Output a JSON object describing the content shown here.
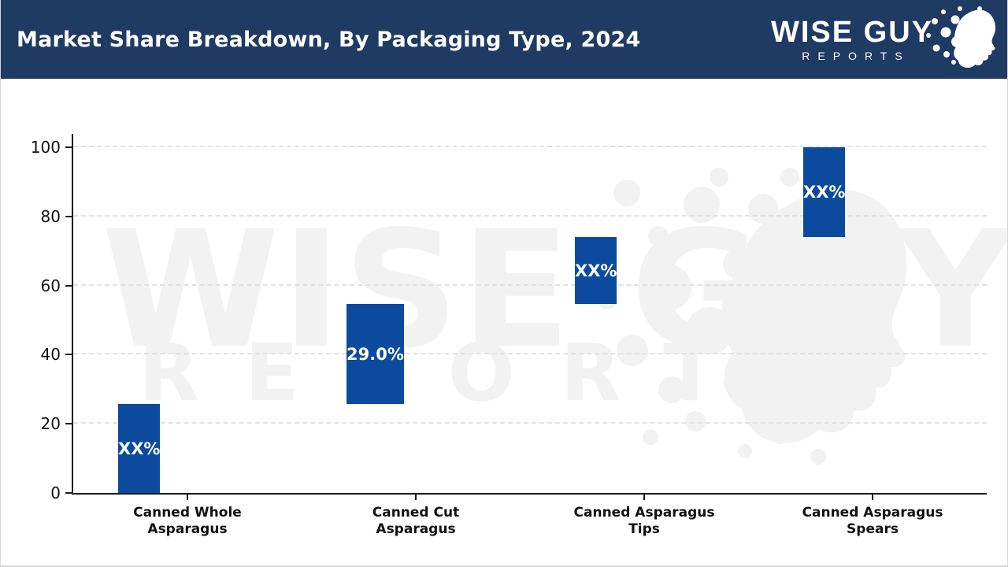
{
  "header": {
    "title": "Market Share Breakdown, By Packaging Type, 2024",
    "logo": {
      "line1": "WISE GUY",
      "line2": "REPORTS"
    }
  },
  "watermark": {
    "line1": "WISE GUY",
    "line2": "REPORTS"
  },
  "chart_data": {
    "type": "bar",
    "subtype": "waterfall-floating-bars",
    "title": "Market Share Breakdown, By Packaging Type, 2024",
    "categories": [
      "Canned Whole Asparagus",
      "Canned Cut Asparagus",
      "Canned Asparagus Tips",
      "Canned Asparagus Spears"
    ],
    "categories_display": [
      [
        "Canned Whole",
        "Asparagus"
      ],
      [
        "Canned Cut",
        "Asparagus"
      ],
      [
        "Canned Asparagus",
        "Tips"
      ],
      [
        "Canned Asparagus",
        "Spears"
      ]
    ],
    "segments": [
      {
        "category": "Canned Whole Asparagus",
        "start": 0,
        "end": 25.7,
        "label": "XX%"
      },
      {
        "category": "Canned Cut Asparagus",
        "start": 25.7,
        "end": 54.7,
        "label": "29.0%",
        "value": 29.0
      },
      {
        "category": "Canned Asparagus Tips",
        "start": 54.7,
        "end": 74.0,
        "label": "XX%"
      },
      {
        "category": "Canned Asparagus Spears",
        "start": 74.0,
        "end": 100.0,
        "label": "XX%"
      }
    ],
    "ylabel": "",
    "xlabel": "",
    "ylim": [
      0,
      100
    ],
    "yticks": [
      0,
      20,
      40,
      60,
      80,
      100
    ],
    "grid": "horizontal-dashed",
    "legend": "none",
    "bar_color": "#0c4a9e",
    "label_color": "#ffffff",
    "header_color": "#1f3a63"
  }
}
